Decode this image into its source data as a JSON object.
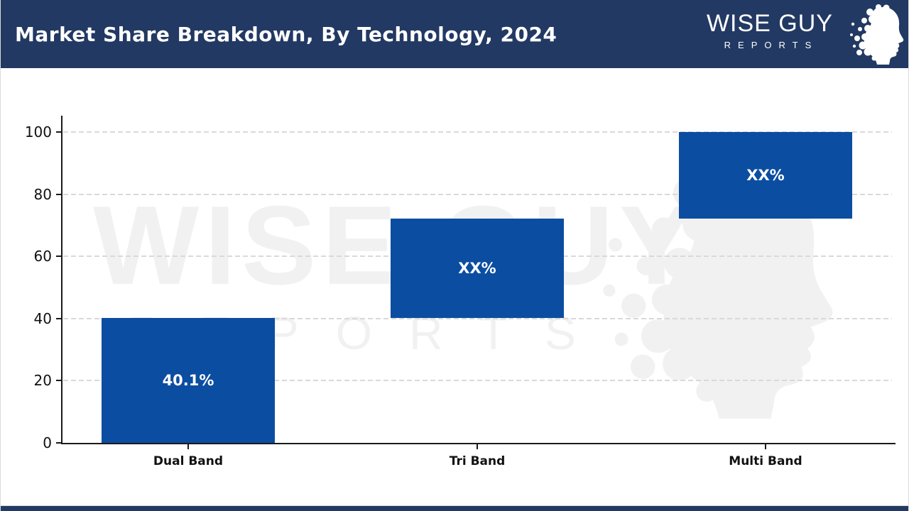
{
  "header": {
    "title": "Market Share Breakdown, By Technology, 2024"
  },
  "logo": {
    "line1": "WISE GUY",
    "line2": "REPORTS"
  },
  "watermark": {
    "line1": "WISE GUY",
    "line2": "REPORTS"
  },
  "chart_data": {
    "type": "bar",
    "subtype": "stacked-waterfall",
    "title": "Market Share Breakdown, By Technology, 2024",
    "categories": [
      "Dual Band",
      "Tri Band",
      "Multi Band"
    ],
    "segments": [
      {
        "category": "Dual Band",
        "start": 0,
        "end": 40.1,
        "label": "40.1%"
      },
      {
        "category": "Tri Band",
        "start": 40.1,
        "end": 72.2,
        "label": "XX%"
      },
      {
        "category": "Multi Band",
        "start": 72.2,
        "end": 100,
        "label": "XX%"
      }
    ],
    "ylim": [
      0,
      100
    ],
    "yticks": [
      0,
      20,
      40,
      60,
      80,
      100
    ],
    "xlabel": "",
    "ylabel": "",
    "grid": "horizontal-dashed",
    "legend": "none",
    "bar_color": "#0B4DA1",
    "bar_label_color": "#FFFFFF"
  },
  "colors": {
    "header_bg": "#223963",
    "footer_bg": "#223963",
    "bar": "#0B4DA1",
    "watermark": "#F1F1F2",
    "gridline": "#D9D9D9",
    "axis": "#1A1A1A"
  }
}
